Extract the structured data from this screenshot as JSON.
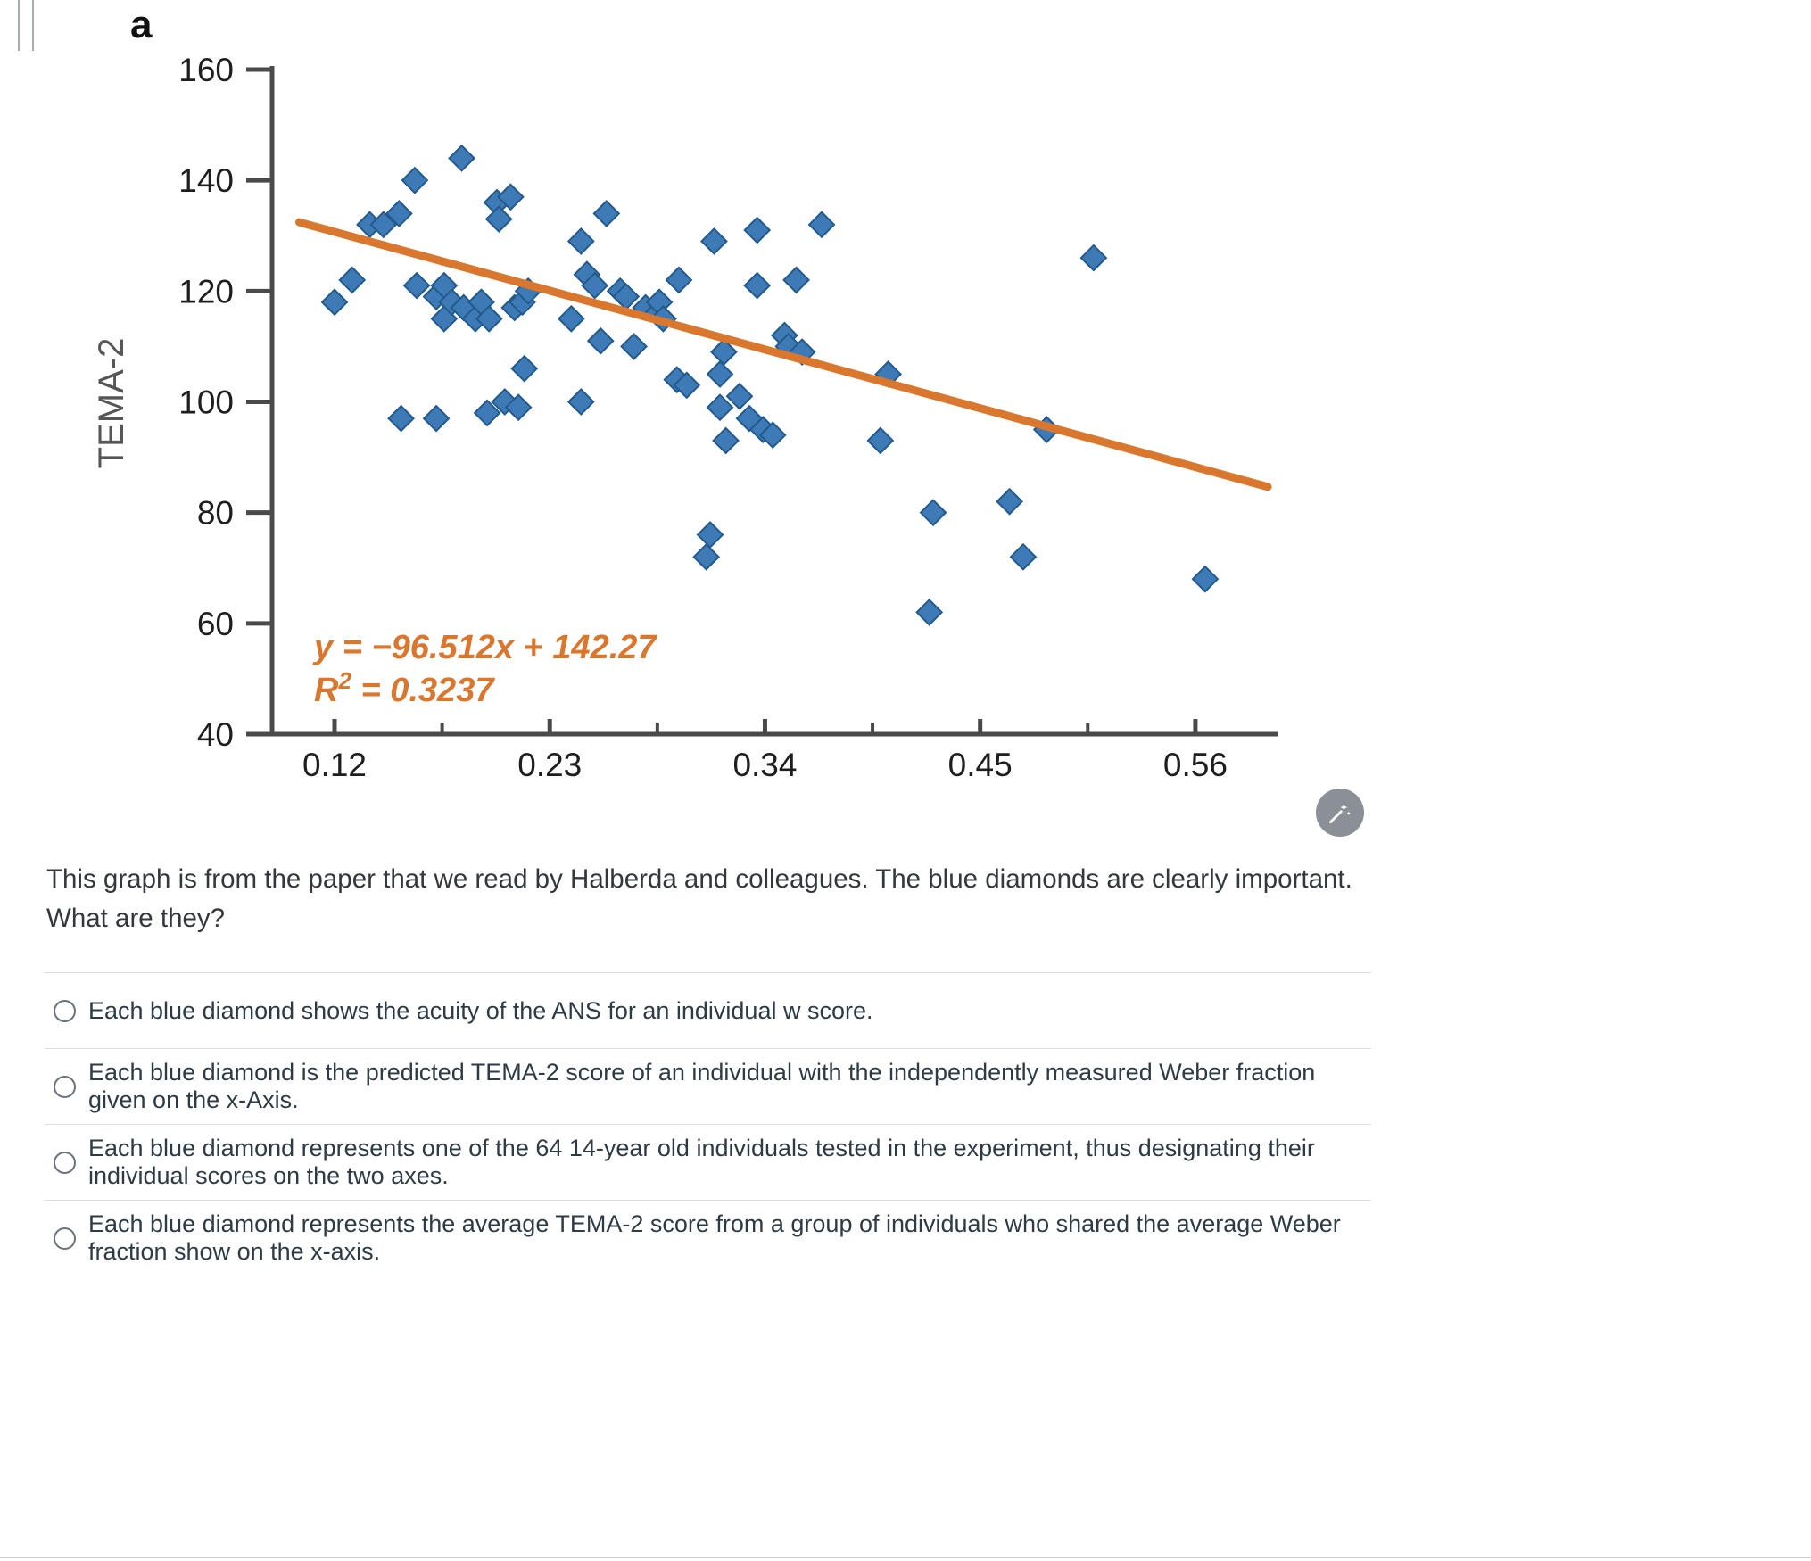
{
  "icons": {
    "magic_wand": "magic-wand-sparkle"
  },
  "chart_data": {
    "type": "scatter",
    "panel_label": "a",
    "title": "",
    "xlabel": "",
    "ylabel": "TEMA-2",
    "x_ticks": [
      0.12,
      0.23,
      0.34,
      0.45,
      0.56
    ],
    "y_ticks": [
      160,
      140,
      120,
      100,
      80,
      60,
      40
    ],
    "xlim": [
      0.088,
      0.6
    ],
    "ylim": [
      40,
      160
    ],
    "grid": false,
    "legend": "none",
    "point_color": "#3d7ab6",
    "point_edge_color": "#235a8c",
    "axis_color": "#4a4a4a",
    "points": [
      [
        0.12,
        118
      ],
      [
        0.129,
        122
      ],
      [
        0.138,
        132
      ],
      [
        0.145,
        132
      ],
      [
        0.153,
        134
      ],
      [
        0.161,
        140
      ],
      [
        0.154,
        97
      ],
      [
        0.162,
        121
      ],
      [
        0.172,
        119
      ],
      [
        0.176,
        115
      ],
      [
        0.172,
        97
      ],
      [
        0.176,
        121
      ],
      [
        0.18,
        118
      ],
      [
        0.185,
        144
      ],
      [
        0.186,
        117
      ],
      [
        0.192,
        115
      ],
      [
        0.195,
        118
      ],
      [
        0.199,
        115
      ],
      [
        0.198,
        98
      ],
      [
        0.203,
        136
      ],
      [
        0.204,
        133
      ],
      [
        0.207,
        100
      ],
      [
        0.21,
        137
      ],
      [
        0.212,
        117
      ],
      [
        0.216,
        118
      ],
      [
        0.217,
        106
      ],
      [
        0.214,
        99
      ],
      [
        0.219,
        120
      ],
      [
        0.241,
        115
      ],
      [
        0.246,
        100
      ],
      [
        0.246,
        129
      ],
      [
        0.249,
        123
      ],
      [
        0.253,
        121
      ],
      [
        0.256,
        111
      ],
      [
        0.259,
        134
      ],
      [
        0.266,
        120
      ],
      [
        0.269,
        119
      ],
      [
        0.273,
        110
      ],
      [
        0.279,
        117
      ],
      [
        0.285,
        116
      ],
      [
        0.286,
        118
      ],
      [
        0.288,
        115
      ],
      [
        0.296,
        122
      ],
      [
        0.295,
        104
      ],
      [
        0.3,
        103
      ],
      [
        0.312,
        76
      ],
      [
        0.31,
        72
      ],
      [
        0.314,
        129
      ],
      [
        0.317,
        105
      ],
      [
        0.317,
        99
      ],
      [
        0.32,
        93
      ],
      [
        0.319,
        109
      ],
      [
        0.327,
        101
      ],
      [
        0.332,
        97
      ],
      [
        0.336,
        131
      ],
      [
        0.336,
        121
      ],
      [
        0.339,
        95
      ],
      [
        0.344,
        94
      ],
      [
        0.35,
        112
      ],
      [
        0.352,
        110
      ],
      [
        0.356,
        122
      ],
      [
        0.359,
        109
      ],
      [
        0.369,
        132
      ],
      [
        0.399,
        93
      ],
      [
        0.403,
        105
      ],
      [
        0.424,
        62
      ],
      [
        0.426,
        80
      ],
      [
        0.465,
        82
      ],
      [
        0.472,
        72
      ],
      [
        0.484,
        95
      ],
      [
        0.508,
        126
      ],
      [
        0.565,
        68
      ]
    ],
    "trendline": {
      "slope": -96.512,
      "intercept": 142.27,
      "x_start": 0.102,
      "x_end": 0.597,
      "color": "#d9772e",
      "equation_label": "y = −96.512x + 142.27",
      "r2_base": "R",
      "r2_sup": "2",
      "r2_rest": " = 0.3237"
    }
  },
  "question": {
    "text": "This graph is from the paper that we read by Halberda and colleagues. The blue diamonds are clearly important. What are they?"
  },
  "options": [
    {
      "label": "Each blue diamond shows the acuity of the ANS for an individual w score."
    },
    {
      "label": "Each blue diamond is the predicted TEMA-2 score of an individual with the independently measured Weber fraction given on the x-Axis."
    },
    {
      "label": "Each blue diamond represents one of the 64 14-year old individuals tested in the experiment, thus designating their individual scores on the two axes."
    },
    {
      "label": "Each blue diamond represents the average TEMA-2 score from a group of individuals who shared the average Weber fraction show on the x-axis."
    }
  ]
}
